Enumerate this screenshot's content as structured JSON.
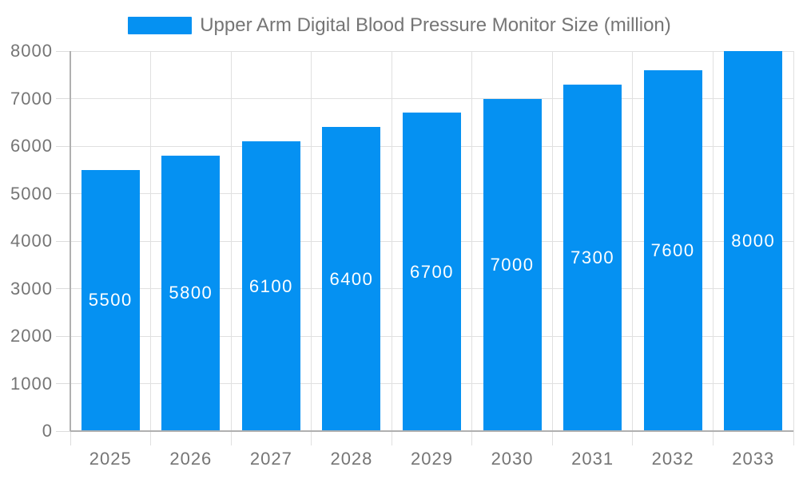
{
  "chart_data": {
    "type": "bar",
    "title": "Upper Arm Digital Blood Pressure Monitor Size (million)",
    "legend": {
      "position": "top-center",
      "entries": [
        "Upper Arm Digital Blood Pressure Monitor Size (million)"
      ]
    },
    "categories": [
      "2025",
      "2026",
      "2027",
      "2028",
      "2029",
      "2030",
      "2031",
      "2032",
      "2033"
    ],
    "series": [
      {
        "name": "Upper Arm Digital Blood Pressure Monitor Size (million)",
        "values": [
          5500,
          5800,
          6100,
          6400,
          6700,
          7000,
          7300,
          7600,
          8000
        ]
      }
    ],
    "data_labels": [
      "5500",
      "5800",
      "6100",
      "6400",
      "6700",
      "7000",
      "7300",
      "7600",
      "8000"
    ],
    "xlabel": "",
    "ylabel": "",
    "ylim": [
      0,
      8000
    ],
    "y_ticks": [
      0,
      1000,
      2000,
      3000,
      4000,
      5000,
      6000,
      7000,
      8000
    ],
    "y_tick_labels": [
      "0",
      "1000",
      "2000",
      "3000",
      "4000",
      "5000",
      "6000",
      "7000",
      "8000"
    ],
    "grid": true,
    "colors": {
      "bar": "#0591f2",
      "bar_label_text": "#ffffff",
      "axis_text": "#757575",
      "legend_text": "#757575",
      "gridline": "#e0e0e0",
      "axis_line": "#b0b0b0",
      "background": "#ffffff"
    }
  }
}
